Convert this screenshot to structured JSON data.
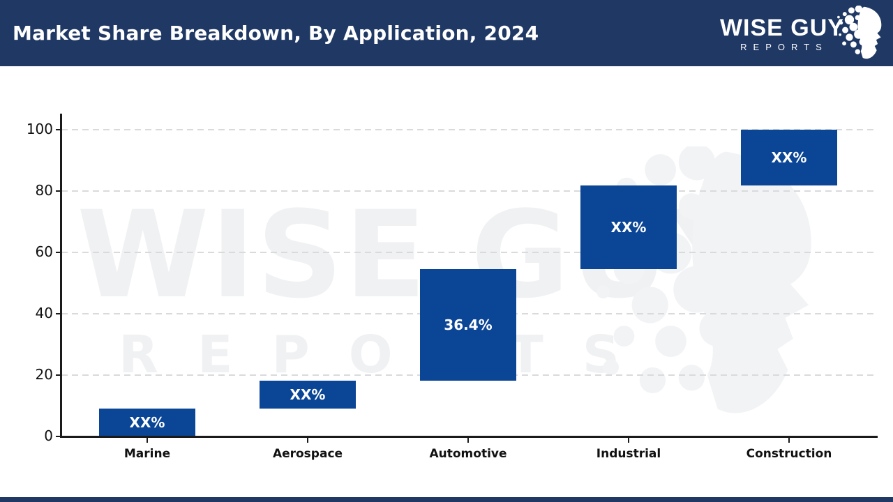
{
  "header": {
    "title": "Market Share Breakdown, By Application, 2024",
    "logo": {
      "line1": "WISE GUY",
      "line2": "REPORTS"
    }
  },
  "watermark": {
    "line1": "WISE GUY",
    "line2": "REPORTS"
  },
  "chart_data": {
    "type": "bar",
    "subtype": "waterfall",
    "title": "Market Share Breakdown, By Application, 2024",
    "categories": [
      "Marine",
      "Aerospace",
      "Automotive",
      "Industrial",
      "Construction"
    ],
    "segments": [
      {
        "category": "Marine",
        "start": 0,
        "end": 9.1,
        "label": "XX%"
      },
      {
        "category": "Aerospace",
        "start": 9.1,
        "end": 18.2,
        "label": "XX%"
      },
      {
        "category": "Automotive",
        "start": 18.2,
        "end": 54.6,
        "label": "36.4%"
      },
      {
        "category": "Industrial",
        "start": 54.6,
        "end": 81.9,
        "label": "XX%"
      },
      {
        "category": "Construction",
        "start": 81.9,
        "end": 100,
        "label": "XX%"
      }
    ],
    "xlabel": "",
    "ylabel": "",
    "ylim": [
      0,
      100
    ],
    "yticks": [
      0,
      20,
      40,
      60,
      80,
      100
    ],
    "grid": "horizontal-dashed",
    "legend": "none",
    "colors": {
      "bar": "#0b4596",
      "bar_label": "#ffffff",
      "header_background": "#1f3864",
      "gridline": "#d9dadc",
      "axis": "#1a1a1a",
      "watermark": "#f0f1f3"
    }
  }
}
